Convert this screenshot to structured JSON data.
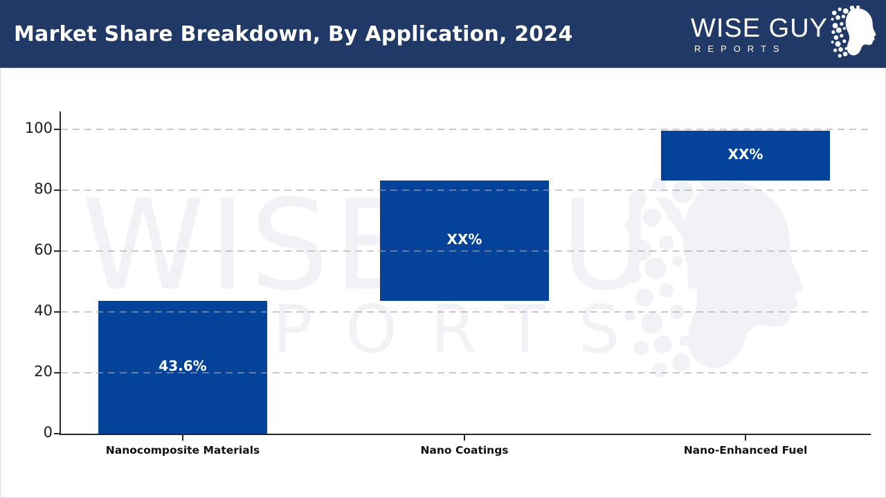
{
  "header": {
    "logo": {
      "line1": "WISE GUY",
      "line2": "REPORTS"
    }
  },
  "watermark": {
    "line1": "WISE GUY",
    "line2": "REPORTS"
  },
  "chart_data": {
    "type": "bar",
    "subtype": "waterfall-stacked-percentage",
    "title": "Market Share Breakdown, By Application, 2024",
    "categories": [
      "Nanocomposite Materials",
      "Nano Coatings",
      "Nano-Enhanced Fuel"
    ],
    "segments": [
      {
        "category": "Nanocomposite Materials",
        "label": "43.6%",
        "start": 0,
        "end": 43.6
      },
      {
        "category": "Nano Coatings",
        "label": "XX%",
        "start": 43.6,
        "end": 83.2
      },
      {
        "category": "Nano-Enhanced Fuel",
        "label": "XX%",
        "start": 83.2,
        "end": 99.5
      }
    ],
    "yticks": [
      0,
      20,
      40,
      60,
      80,
      100
    ],
    "ylim": [
      0,
      105
    ],
    "grid": "horizontal-dashed-over-bars",
    "legend": "none",
    "bar_color": "#05439B",
    "value_label_color": "#FFFFFF"
  },
  "colors": {
    "header_bg": "#213966",
    "bar": "#05439B",
    "watermark": "#F1F2F5",
    "axis": "#262626",
    "text_dark": "#1A1A1A"
  }
}
